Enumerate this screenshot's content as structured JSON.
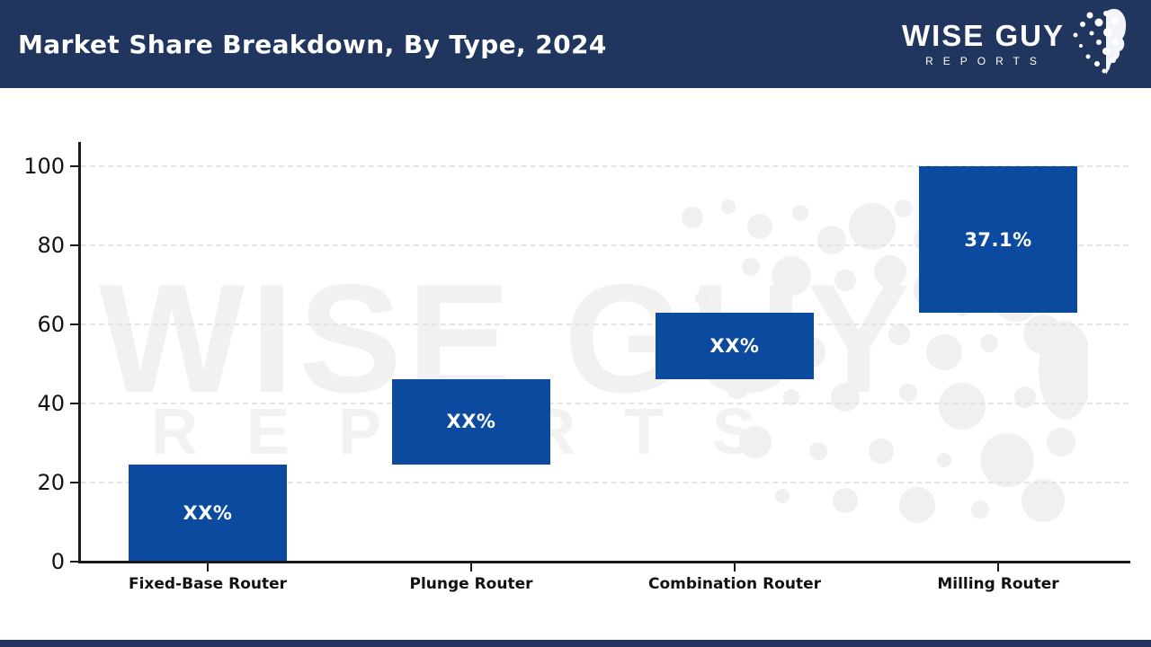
{
  "header": {
    "title": "Market Share Breakdown, By Type, 2024"
  },
  "logo": {
    "line1": "WISE GUY",
    "line2": "REPORTS"
  },
  "watermark": {
    "line1": "WISE GUY",
    "line2": "REPORTS"
  },
  "chart_data": {
    "type": "bar",
    "subtype": "floating-waterfall",
    "title": "Market Share Breakdown, By Type, 2024",
    "categories": [
      "Fixed-Base Router",
      "Plunge Router",
      "Combination Router",
      "Milling Router"
    ],
    "segments": [
      {
        "category": "Fixed-Base Router",
        "start": 0,
        "end": 24.6,
        "label": "XX%"
      },
      {
        "category": "Plunge Router",
        "start": 24.6,
        "end": 46.2,
        "label": "XX%"
      },
      {
        "category": "Combination Router",
        "start": 46.2,
        "end": 62.9,
        "label": "XX%"
      },
      {
        "category": "Milling Router",
        "start": 62.9,
        "end": 100,
        "label": "37.1%"
      }
    ],
    "xlabel": "",
    "ylabel": "",
    "ylim": [
      0,
      105
    ],
    "yticks": [
      0,
      20,
      40,
      60,
      80,
      100
    ],
    "grid": "horizontal-dashed",
    "legend": "none",
    "bar_color": "#0b4a9e",
    "bar_label_color": "#ffffff",
    "header_color": "#20365f"
  }
}
